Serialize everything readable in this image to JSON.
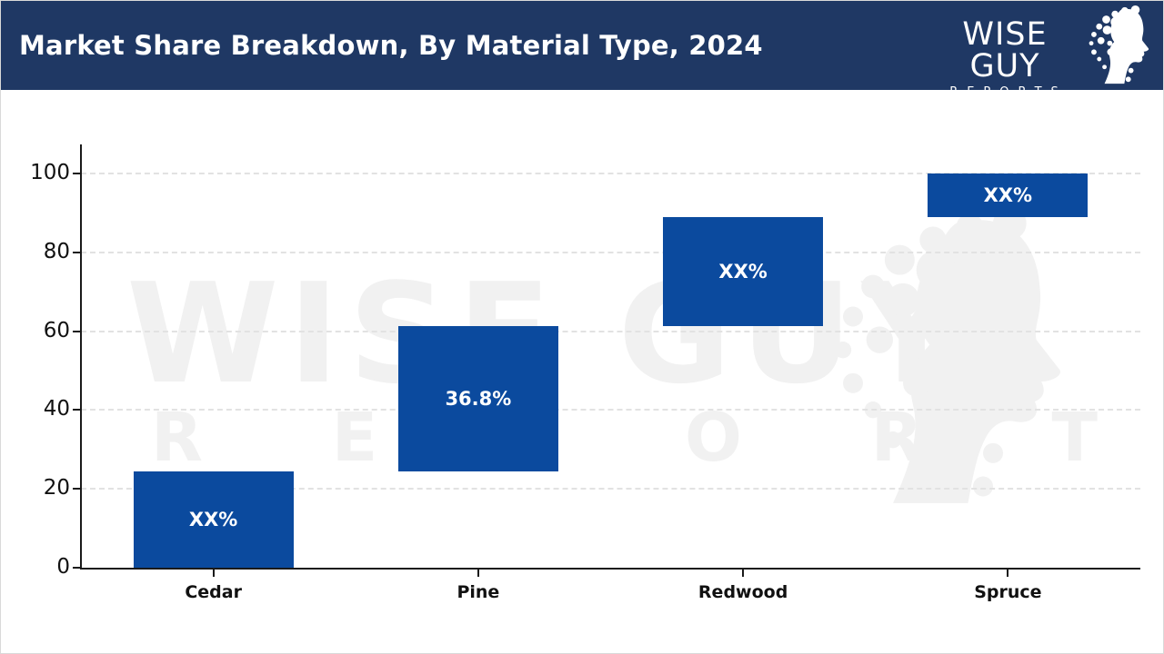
{
  "header": {
    "title": "Market Share Breakdown, By Material Type, 2024",
    "logo": {
      "line1": "WISE GUY",
      "line2": "REPORTS"
    }
  },
  "watermark": {
    "line1": "WISE GUY",
    "line2": "R E P O R T S"
  },
  "colors": {
    "header_bg": "#1f3864",
    "bar": "#0b4a9e",
    "bar_label": "#ffffff",
    "gridline": "#e2e2e2",
    "axis": "#1a1a1a",
    "watermark": "#f1f1f1"
  },
  "chart_data": {
    "type": "bar",
    "subtype": "waterfall",
    "title": "Market Share Breakdown, By Material Type, 2024",
    "xlabel": "",
    "ylabel": "",
    "categories": [
      "Cedar",
      "Pine",
      "Redwood",
      "Spruce"
    ],
    "segments": [
      {
        "category": "Cedar",
        "start": 0,
        "end": 24.5,
        "value": 24.5,
        "label": "XX%"
      },
      {
        "category": "Pine",
        "start": 24.5,
        "end": 61.3,
        "value": 36.8,
        "label": "36.8%"
      },
      {
        "category": "Redwood",
        "start": 61.3,
        "end": 88.9,
        "value": 27.6,
        "label": "XX%"
      },
      {
        "category": "Spruce",
        "start": 88.9,
        "end": 100,
        "value": 11.1,
        "label": "XX%"
      }
    ],
    "yticks": [
      0,
      20,
      40,
      60,
      80,
      100
    ],
    "ylim": [
      0,
      107
    ],
    "grid": "horizontal-dashed",
    "legend": "none"
  }
}
